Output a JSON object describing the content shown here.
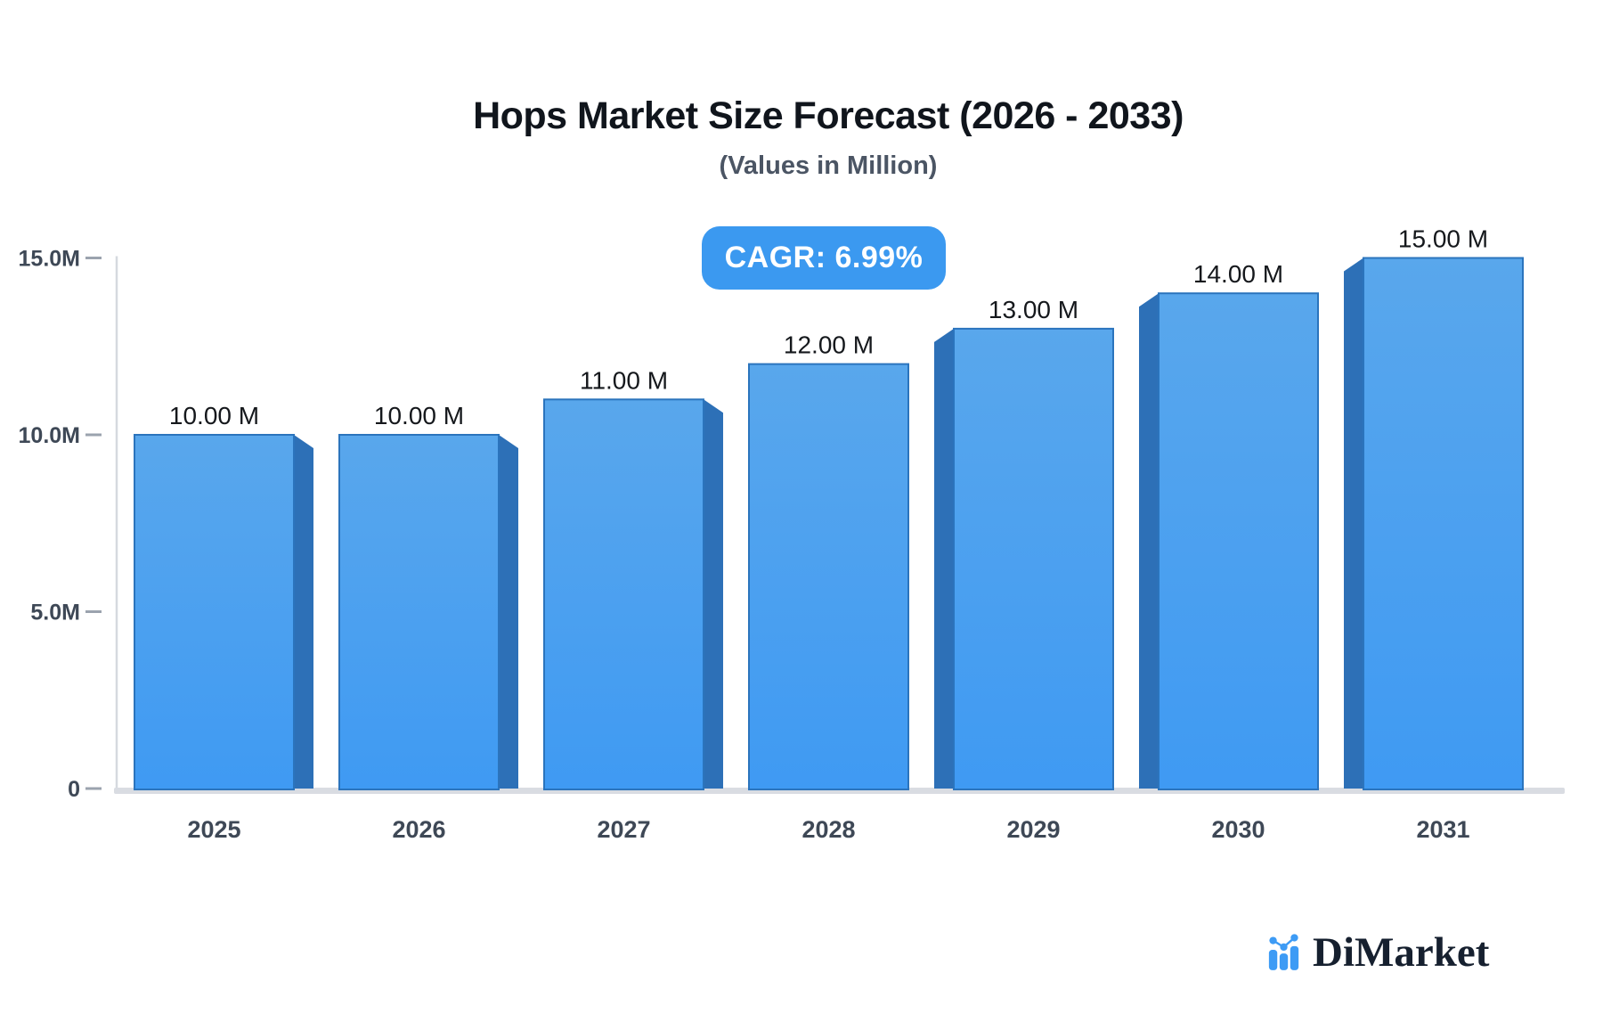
{
  "header": {
    "title": "Hops Market Size Forecast (2026 - 2033)",
    "subtitle": "(Values in Million)"
  },
  "badge": {
    "cagr_label": "CAGR: 6.99%"
  },
  "logo": {
    "name": "DiMarket",
    "icon": "bar-chart-logo-icon"
  },
  "chart_data": {
    "type": "bar",
    "title": "Hops Market Size Forecast (2026 - 2033)",
    "subtitle": "(Values in Million)",
    "cagr_label": "CAGR: 6.99%",
    "unit": "Million",
    "categories": [
      "2025",
      "2026",
      "2027",
      "2028",
      "2029",
      "2030",
      "2031"
    ],
    "values": [
      10,
      10,
      11,
      12,
      13,
      14,
      15
    ],
    "value_labels": [
      "10.00 M",
      "10.00 M",
      "11.00 M",
      "12.00 M",
      "13.00 M",
      "14.00 M",
      "15.00 M"
    ],
    "y_ticks": [
      {
        "value": 15,
        "label": "15.0M"
      },
      {
        "value": 10,
        "label": "10.0M"
      },
      {
        "value": 5,
        "label": "5.0M"
      },
      {
        "value": 0,
        "label": "0"
      }
    ],
    "ylim": [
      0,
      15
    ],
    "grid": false,
    "legend": false,
    "colors": {
      "bar_face_top": "#59a7ec",
      "bar_face_bottom": "#3f9af3",
      "bar_border": "#2b74bd",
      "bar_side": "#2d70b7",
      "value_label": "#15181c",
      "axis_text": "#3e4856",
      "axis_line": "#d5d9df",
      "baseline": "#d9dce2",
      "tick": "#9ba3ae",
      "accent": "#3b99f0"
    }
  }
}
